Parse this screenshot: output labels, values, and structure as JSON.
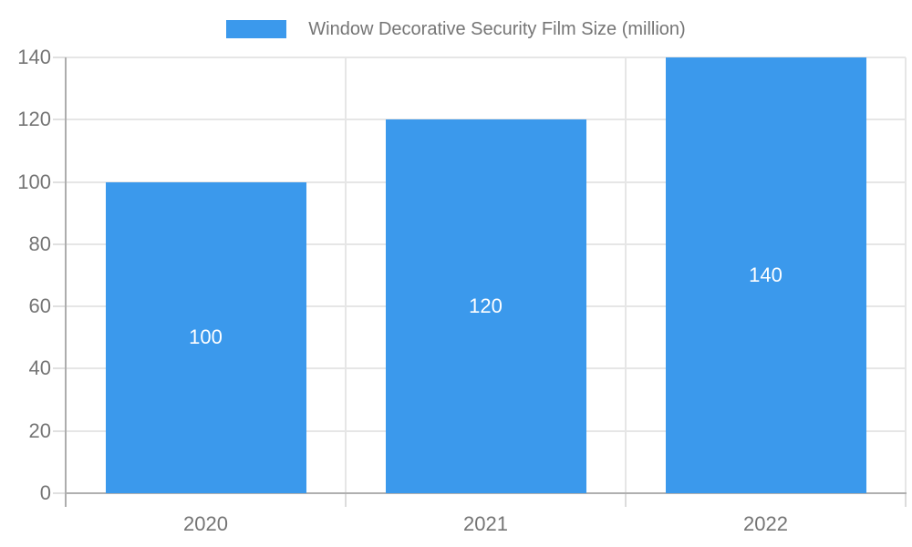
{
  "chart_data": {
    "type": "bar",
    "categories": [
      "2020",
      "2021",
      "2022"
    ],
    "values": [
      100,
      120,
      140
    ],
    "series": [
      {
        "name": "Window Decorative Security Film Size (million)",
        "values": [
          100,
          120,
          140
        ]
      }
    ],
    "title": "",
    "xlabel": "",
    "ylabel": "",
    "ylim": [
      0,
      140
    ],
    "yticks": [
      0,
      20,
      40,
      60,
      80,
      100,
      120,
      140
    ],
    "bar_labels": [
      "100",
      "120",
      "140"
    ],
    "legend_position": "top-center",
    "grid": true
  },
  "legend": {
    "label": "Window Decorative Security Film Size (million)"
  },
  "colors": {
    "bar": "#3b99ec",
    "bar_label_text": "#ffffff",
    "axis_text": "#757575",
    "grid_line": "#e6e6e6",
    "axis_line": "#b0b0b0",
    "background": "#ffffff"
  }
}
